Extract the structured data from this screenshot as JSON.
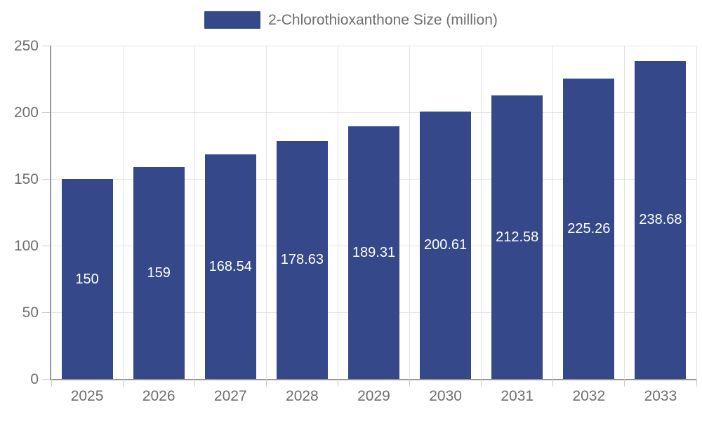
{
  "chart_data": {
    "type": "bar",
    "title": "",
    "legend": "2-Chlorothioxanthone Size (million)",
    "legend_position": "top-center",
    "categories": [
      "2025",
      "2026",
      "2027",
      "2028",
      "2029",
      "2030",
      "2031",
      "2032",
      "2033"
    ],
    "series": [
      {
        "name": "2-Chlorothioxanthone Size (million)",
        "values": [
          150,
          159,
          168.54,
          178.63,
          189.31,
          200.61,
          212.58,
          225.26,
          238.68
        ],
        "value_labels": [
          "150",
          "159",
          "168.54",
          "178.63",
          "189.31",
          "200.61",
          "212.58",
          "225.26",
          "238.68"
        ]
      }
    ],
    "xlabel": "",
    "ylabel": "",
    "ylim": [
      0,
      250
    ],
    "yticks": [
      0,
      50,
      100,
      150,
      200,
      250
    ],
    "grid": true,
    "colors": {
      "bar": "#35488a",
      "bar_value_label": "#ffffff",
      "axis_text": "#6e6e6e",
      "axis_line": "#969696",
      "gridline": "#e3e3e3",
      "background": "#ffffff"
    }
  }
}
